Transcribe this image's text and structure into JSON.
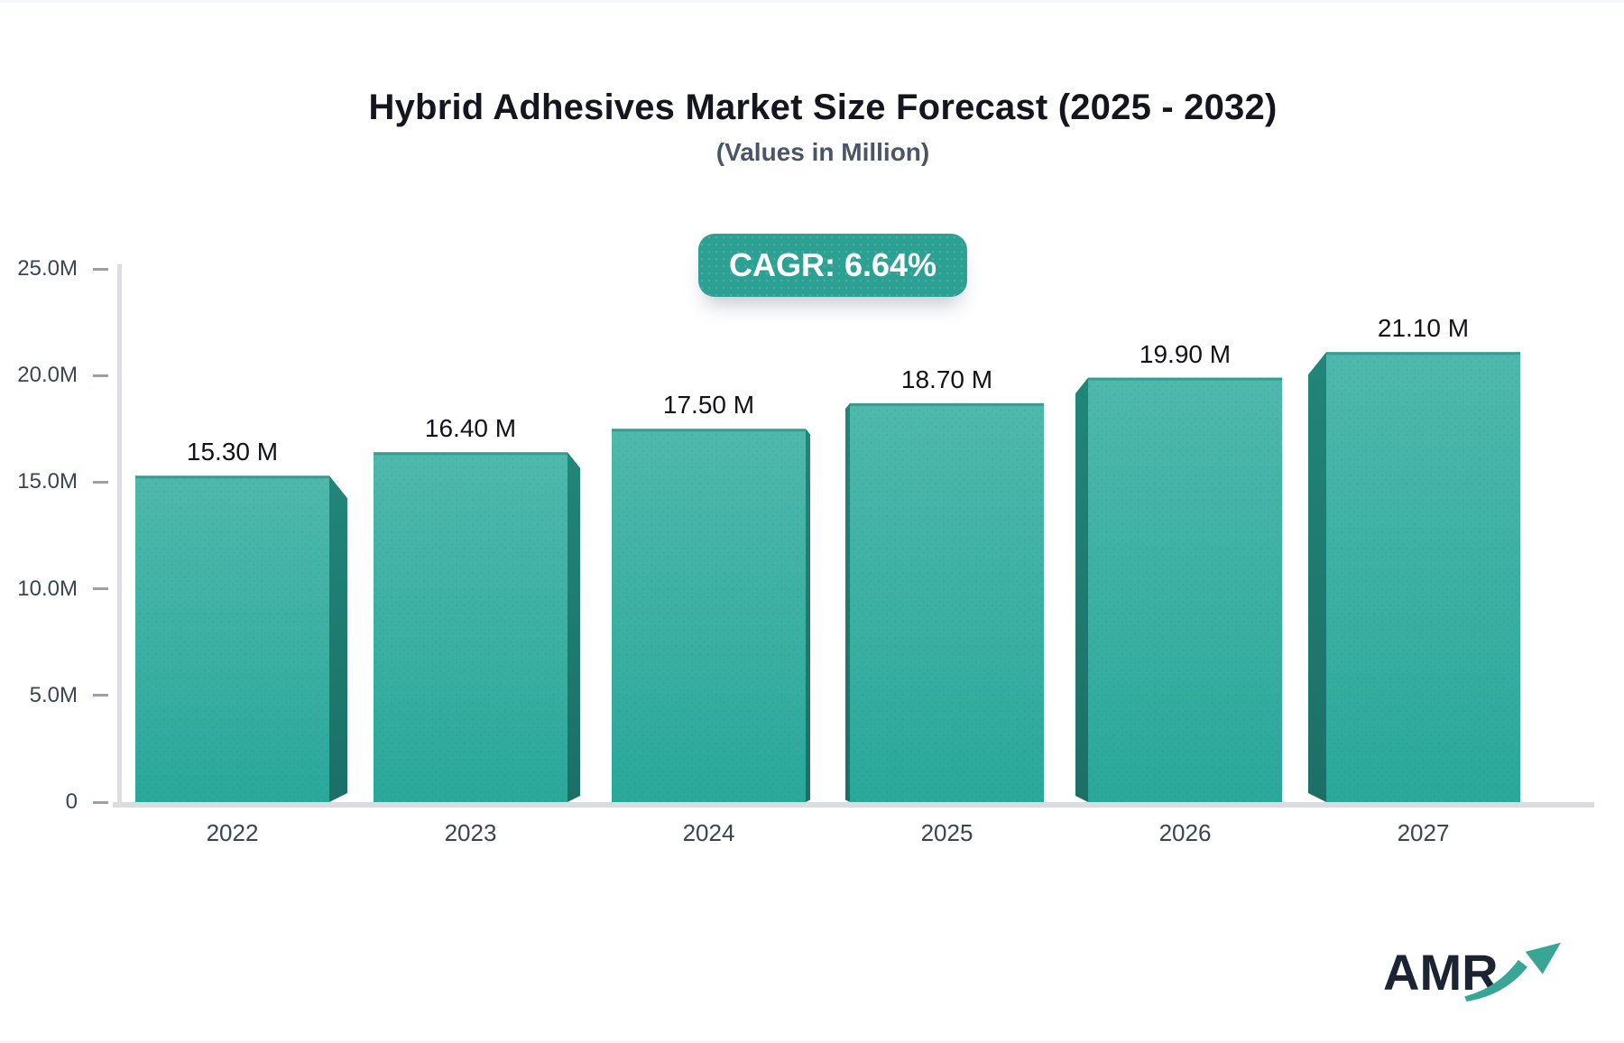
{
  "header": {
    "title": "Hybrid Adhesives Market Size Forecast (2025 - 2032)",
    "subtitle": "(Values in Million)"
  },
  "badge": {
    "label": "CAGR: 6.64%",
    "bg_color": "#2ca193",
    "text_color": "#ffffff"
  },
  "chart_data": {
    "type": "bar",
    "title": "Hybrid Adhesives Market Size Forecast (2025 - 2032)",
    "subtitle": "(Values in Million)",
    "cagr_annotation": "CAGR: 6.64%",
    "categories": [
      "2022",
      "2023",
      "2024",
      "2025",
      "2026",
      "2027"
    ],
    "values": [
      15.3,
      16.4,
      17.5,
      18.7,
      19.9,
      21.1
    ],
    "bar_labels": [
      "15.30 M",
      "16.40 M",
      "17.50 M",
      "18.70 M",
      "19.90 M",
      "21.10 M"
    ],
    "xlabel": "",
    "ylabel": "",
    "ylim": [
      0,
      25
    ],
    "ytick_values": [
      25,
      20,
      15,
      10,
      5,
      0
    ],
    "ytick_labels": [
      "25.0M",
      "20.0M",
      "15.0M",
      "10.0M",
      "5.0M",
      "0"
    ],
    "grid": false,
    "legend": null,
    "bar_face_color_top": "#4fb8ac",
    "bar_face_color_bottom": "#2aa89a",
    "bar_side_color_top": "#21867a",
    "bar_side_color_bottom": "#1c6f66",
    "style": "3d-extruded bars, perspective toward center"
  },
  "logo": {
    "text": "AMR",
    "text_color": "#1b2433",
    "arrow_color": "#38a595"
  }
}
